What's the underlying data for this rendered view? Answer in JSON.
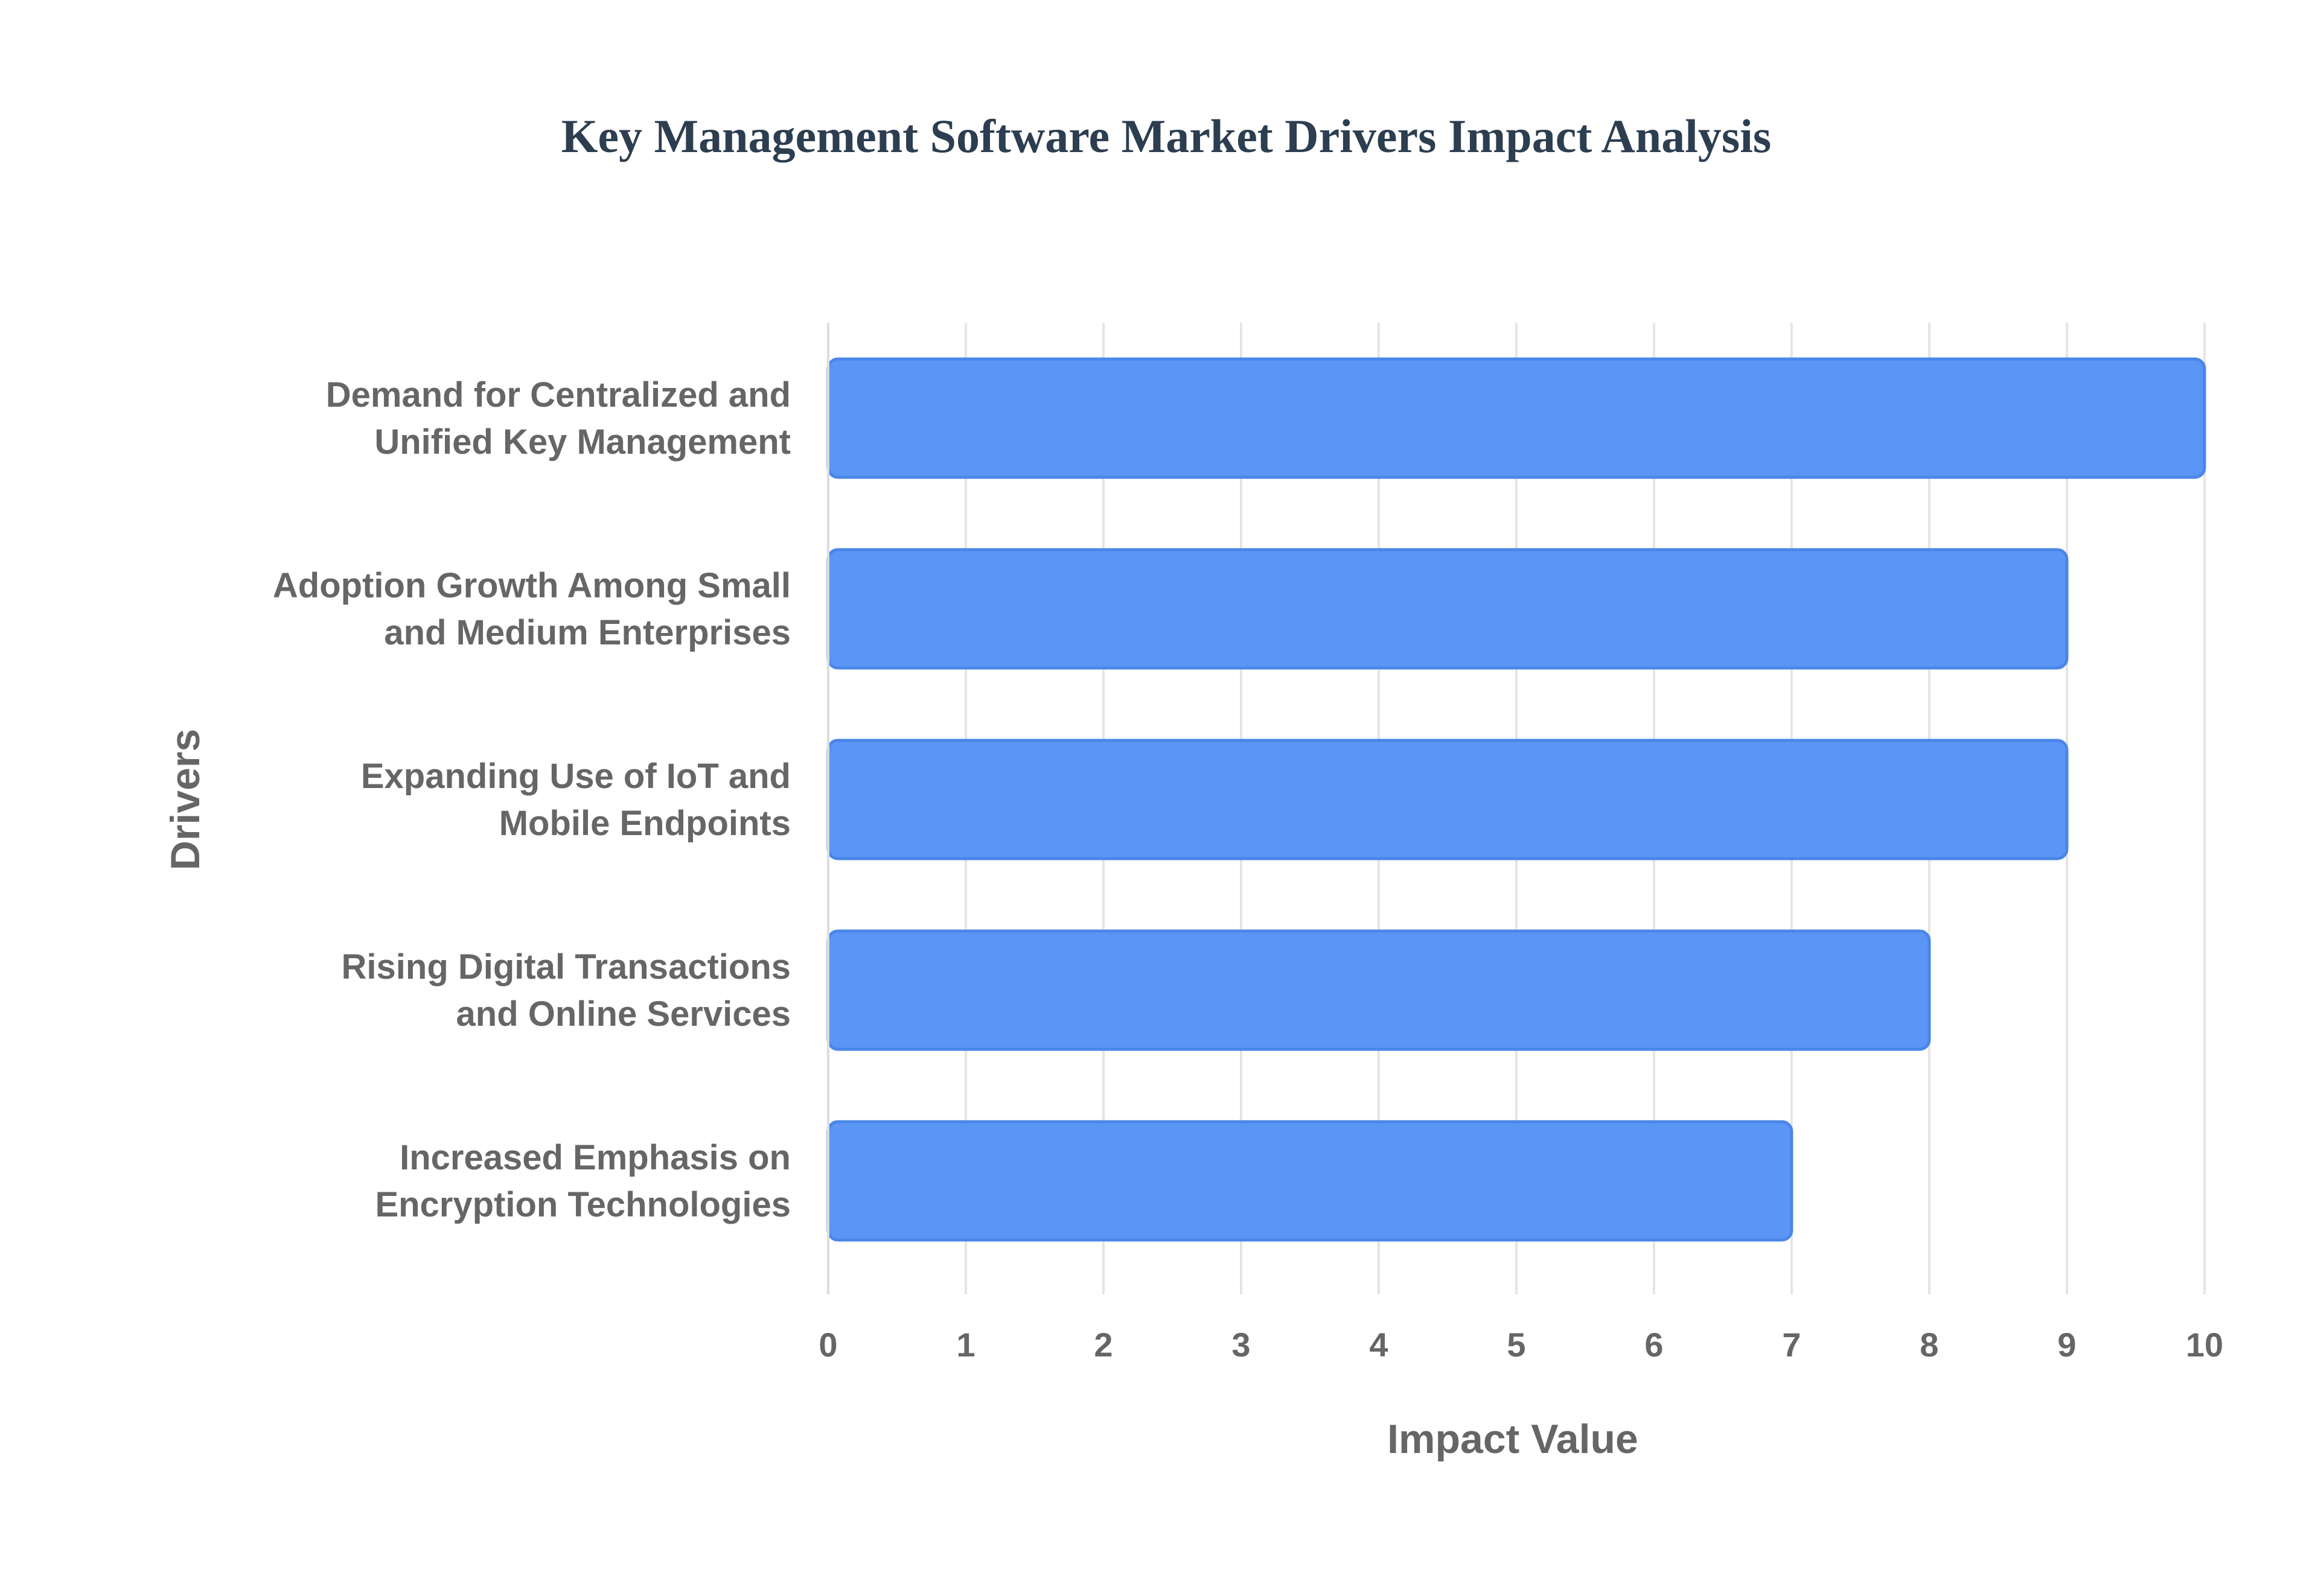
{
  "chart_data": {
    "type": "bar",
    "orientation": "horizontal",
    "title": "Key Management Software Market Drivers Impact Analysis",
    "xlabel": "Impact Value",
    "ylabel": "Drivers",
    "categories": [
      [
        "Demand for Centralized and",
        "Unified Key Management"
      ],
      [
        "Adoption Growth Among Small",
        "and Medium Enterprises"
      ],
      [
        "Expanding Use of IoT and",
        "Mobile Endpoints"
      ],
      [
        "Rising Digital Transactions",
        "and Online Services"
      ],
      [
        "Increased Emphasis on",
        "Encryption Technologies"
      ]
    ],
    "values": [
      10,
      9,
      9,
      8,
      7
    ],
    "xlim": [
      0,
      10
    ],
    "xticks": [
      "0",
      "1",
      "2",
      "3",
      "4",
      "5",
      "6",
      "7",
      "8",
      "9",
      "10"
    ],
    "grid": true,
    "legend": "none",
    "colors": {
      "bar_fill": "#5b95f5",
      "bar_stroke": "#4a86e8",
      "title": "#2c3e50",
      "text": "#666666"
    }
  }
}
